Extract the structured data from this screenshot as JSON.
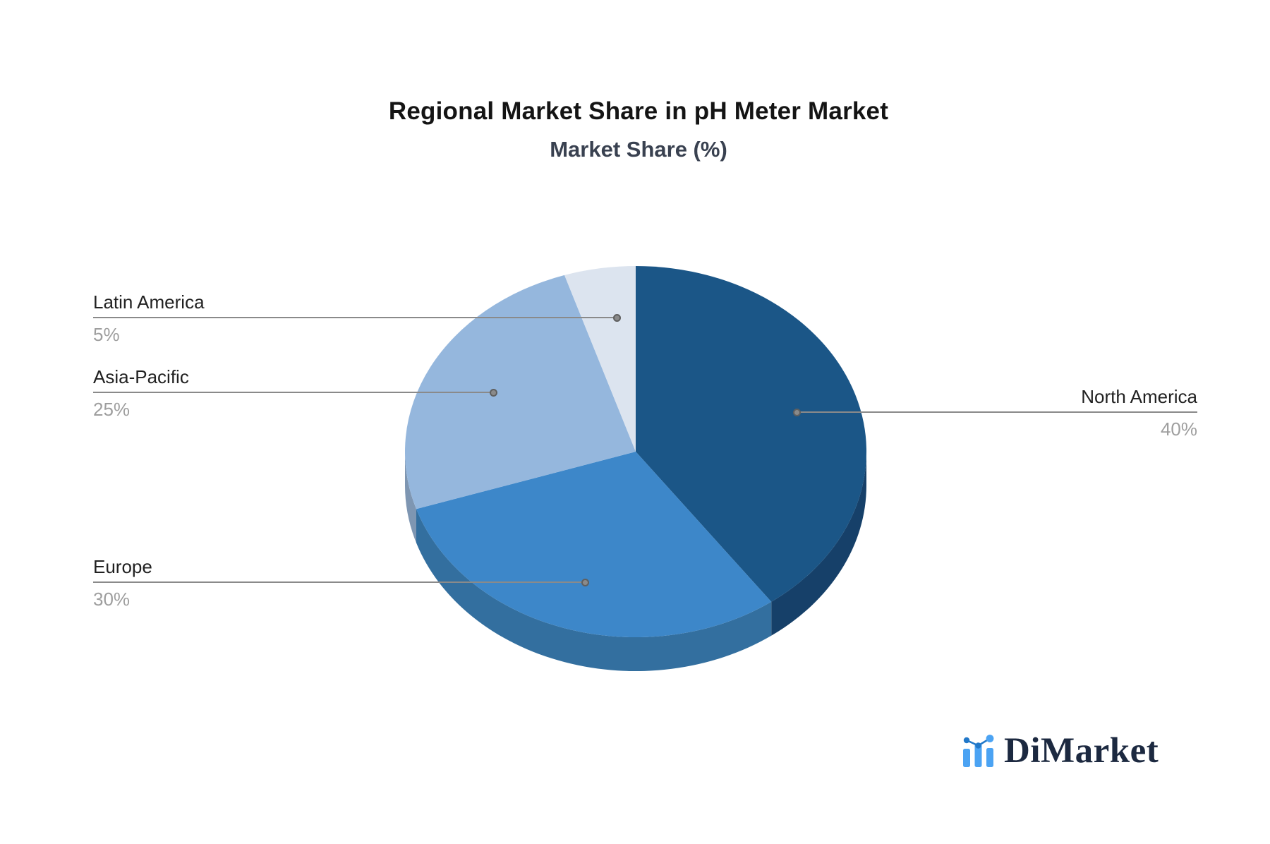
{
  "page": {
    "title": "Regional Market Share in pH Meter Market",
    "subtitle": "Market Share (%)",
    "background": "#ffffff"
  },
  "chart_data": {
    "type": "pie",
    "style": "3d",
    "title": "Regional Market Share in pH Meter Market",
    "subtitle": "Market Share (%)",
    "unit": "%",
    "categories": [
      "North America",
      "Europe",
      "Asia-Pacific",
      "Latin America"
    ],
    "values": [
      40,
      30,
      25,
      5
    ],
    "value_labels": [
      "40%",
      "30%",
      "25%",
      "5%"
    ],
    "colors": [
      "#1b5687",
      "#3d87c9",
      "#95b7dd",
      "#dce4ef"
    ],
    "side_colors": [
      "#164069",
      "#336f9f",
      "#7e96b2",
      null
    ],
    "start_angle_deg": 0,
    "direction": "clockwise",
    "legend": "none",
    "leader_line_color": "#8a8a8a",
    "label_color": "#212121",
    "value_color": "#9e9e9e"
  },
  "logo": {
    "text": "DiMarket",
    "icon": "bar-line-chart-icon",
    "text_color": "#1c2940",
    "icon_bar_color": "#4ba3f3",
    "icon_accent_color": "#2178c9"
  }
}
